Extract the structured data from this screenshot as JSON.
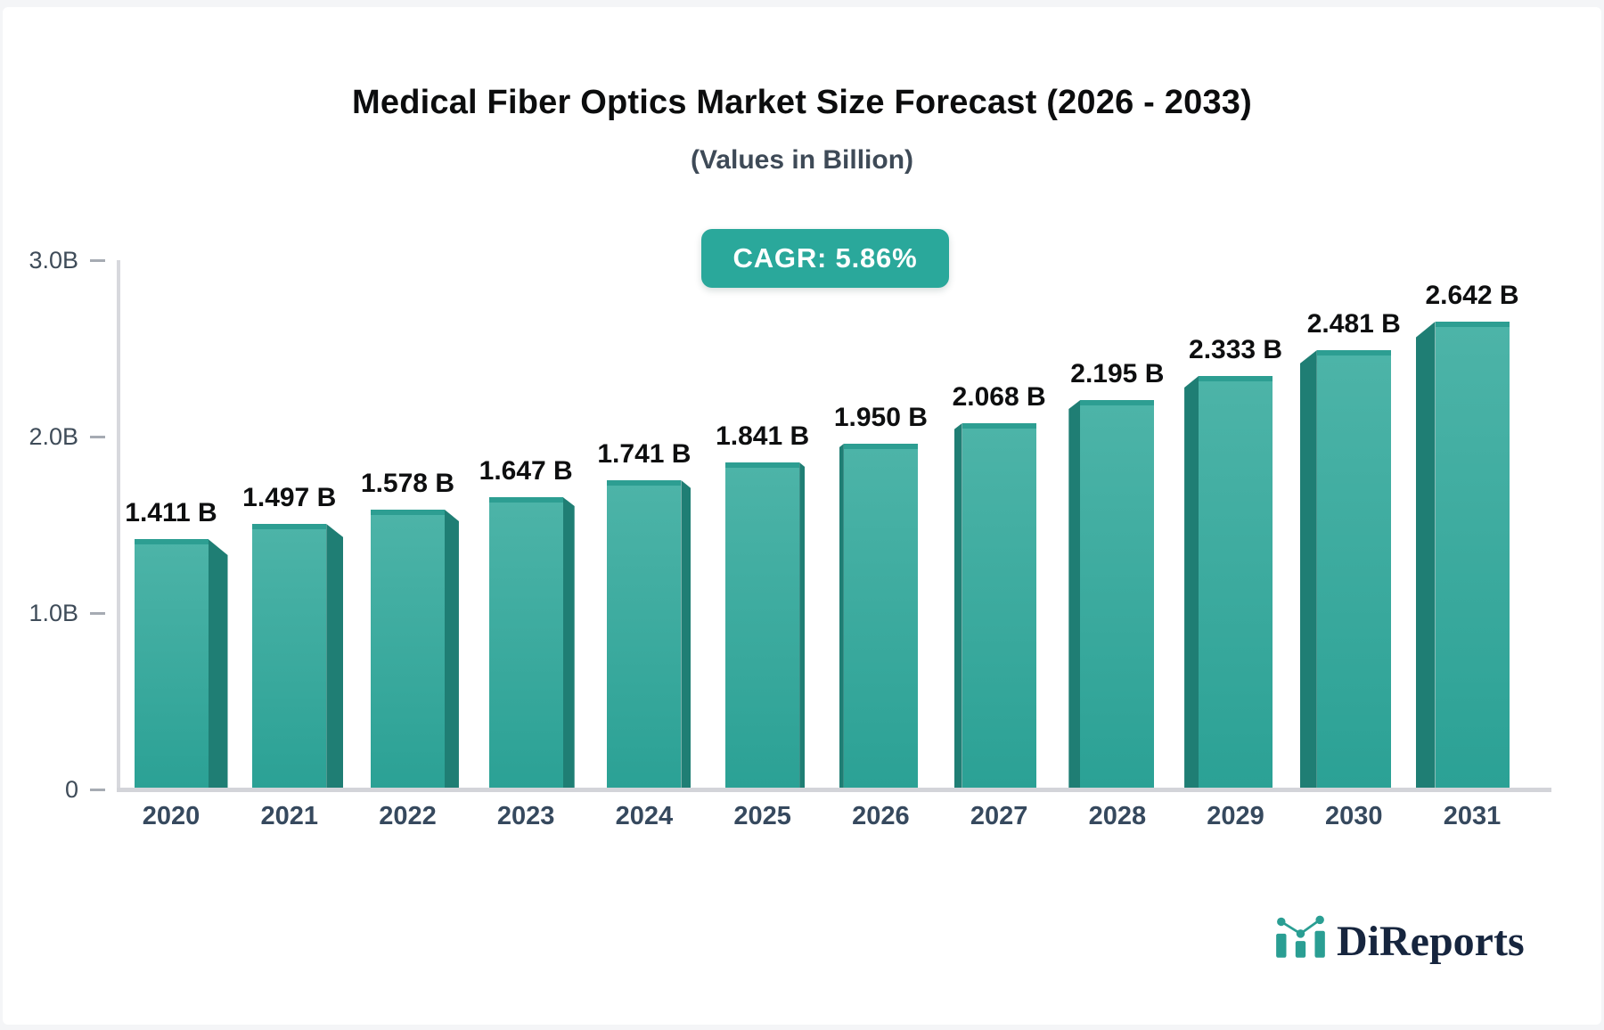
{
  "page": {
    "background": "#f4f5f7",
    "card_background": "#ffffff"
  },
  "header": {
    "title": "Medical Fiber Optics Market Size Forecast (2026 - 2033)",
    "subtitle": "(Values in Billion)",
    "cagr_badge": "CAGR: 5.86%",
    "badge_color": "#2aa89b"
  },
  "chart_data": {
    "type": "bar",
    "title": "Medical Fiber Optics Market Size Forecast (2026 - 2033)",
    "subtitle": "(Values in Billion)",
    "categories": [
      "2020",
      "2021",
      "2022",
      "2023",
      "2024",
      "2025",
      "2026",
      "2027",
      "2028",
      "2029",
      "2030",
      "2031"
    ],
    "values": [
      1.411,
      1.497,
      1.578,
      1.647,
      1.741,
      1.841,
      1.95,
      2.068,
      2.195,
      2.333,
      2.481,
      2.642
    ],
    "value_labels": [
      "1.411 B",
      "1.497 B",
      "1.578 B",
      "1.647 B",
      "1.741 B",
      "1.841 B",
      "1.950 B",
      "2.068 B",
      "2.195 B",
      "2.333 B",
      "2.481 B",
      "2.642 B"
    ],
    "unit": "Billion",
    "cagr": "5.86%",
    "xlabel": "",
    "ylabel": "",
    "ylim": [
      0,
      3
    ],
    "y_ticks": [
      {
        "label": "3.0B",
        "value": 3
      },
      {
        "label": "2.0B",
        "value": 2
      },
      {
        "label": "1.0B",
        "value": 1
      },
      {
        "label": "0",
        "value": 0
      }
    ],
    "grid": false,
    "legend": false,
    "bar_front_top_color": "#4db4a8",
    "bar_front_bottom_color": "#2ba195",
    "bar_top_color": "#2d9e92",
    "bar_side_color": "#1f7e74"
  },
  "brand": {
    "name": "DiReports",
    "icon": "bar-line-chart-icon",
    "accent": "#2a9e93",
    "text_color": "#16253e"
  }
}
